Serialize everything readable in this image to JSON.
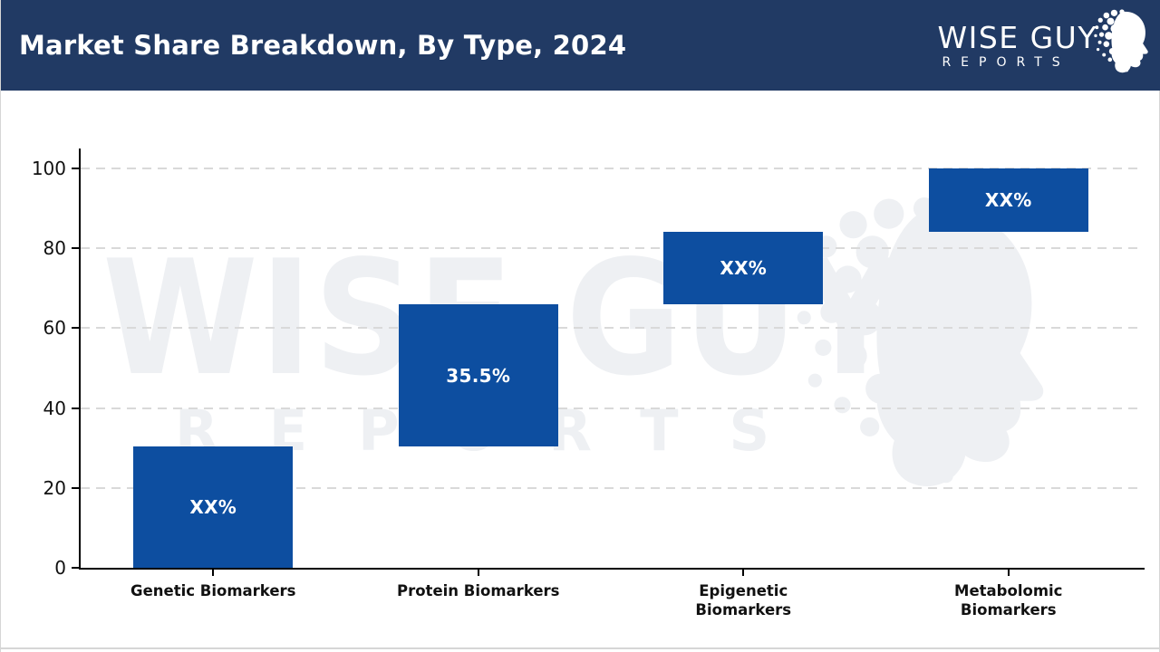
{
  "header": {
    "title": "Market Share Breakdown, By Type, 2024",
    "brand": {
      "line1": "WISE GUY",
      "line2": "REPORTS"
    }
  },
  "watermark": {
    "line1": "WISE GUY",
    "line2": "REPORTS"
  },
  "colors": {
    "header_navy": "#213A64",
    "bar_blue": "#0D4EA0",
    "bar_label_white": "#FFFFFF",
    "gridline_gray": "#D9D9D9",
    "watermark_gray": "#EEF0F3",
    "axis_black": "#000000"
  },
  "chart_data": {
    "type": "bar",
    "subtype": "waterfall-floating-segments",
    "title": "Market Share Breakdown, By Type, 2024",
    "categories": [
      "Genetic Biomarkers",
      "Protein Biomarkers",
      "Epigenetic Biomarkers",
      "Metabolomic Biomarkers"
    ],
    "values": [
      30.4,
      35.5,
      18.2,
      15.9
    ],
    "bars": [
      {
        "category": "Genetic Biomarkers",
        "start": 0,
        "end": 30.4,
        "label": "XX%"
      },
      {
        "category": "Protein Biomarkers",
        "start": 30.4,
        "end": 65.9,
        "label": "35.5%"
      },
      {
        "category": "Epigenetic\nBiomarkers",
        "start": 65.9,
        "end": 84.1,
        "label": "XX%"
      },
      {
        "category": "Metabolomic\nBiomarkers",
        "start": 84.1,
        "end": 100,
        "label": "XX%"
      }
    ],
    "xlabel": "",
    "ylabel": "",
    "ylim": [
      0,
      100
    ],
    "yticks": [
      0,
      20,
      40,
      60,
      80,
      100
    ],
    "grid": "horizontal-dashed",
    "legend": "none"
  }
}
